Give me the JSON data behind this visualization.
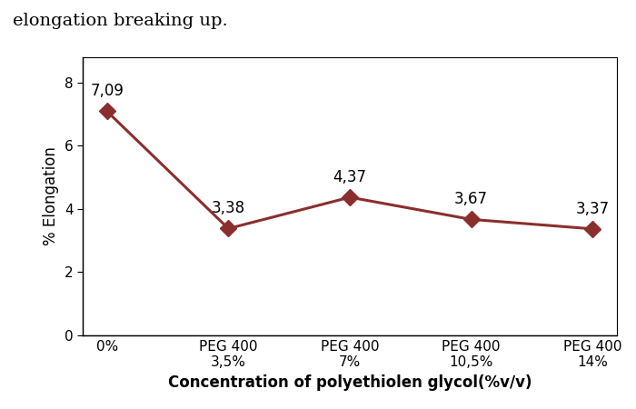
{
  "x_labels": [
    "0%",
    "PEG 400\n3,5%",
    "PEG 400\n7%",
    "PEG 400\n10,5%",
    "PEG 400\n14%"
  ],
  "y_values": [
    7.09,
    3.38,
    4.37,
    3.67,
    3.37
  ],
  "annotations": [
    "7,09",
    "3,38",
    "4,37",
    "3,67",
    "3,37"
  ],
  "line_color": "#8B2E2E",
  "marker": "D",
  "marker_size": 9,
  "linewidth": 2.2,
  "ylabel": "% Elongation",
  "xlabel": "Concentration of polyethiolen glycol(%v/v)",
  "ylim": [
    0,
    8.8
  ],
  "yticks": [
    0,
    2,
    4,
    6,
    8
  ],
  "xlabel_fontsize": 12,
  "ylabel_fontsize": 12,
  "tick_fontsize": 11,
  "annotation_fontsize": 12,
  "header_text": "elongation breaking up.",
  "header_fontsize": 14,
  "background_color": "#ffffff"
}
